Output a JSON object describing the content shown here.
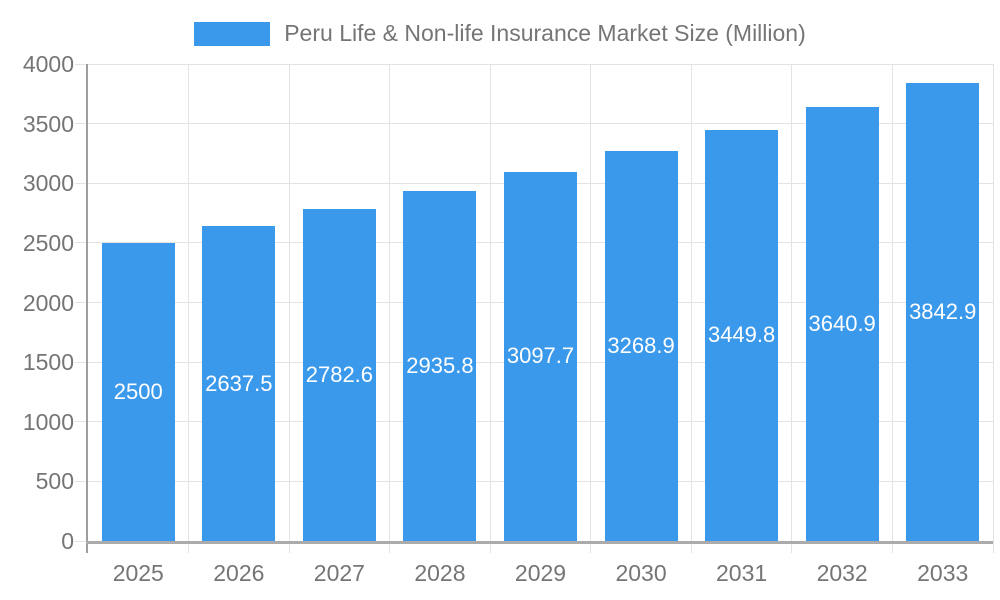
{
  "legend": {
    "label": "Peru Life & Non-life Insurance Market Size (Million)"
  },
  "chart_data": {
    "type": "bar",
    "title": "Peru Life & Non-life Insurance Market Size (Million)",
    "categories": [
      "2025",
      "2026",
      "2027",
      "2028",
      "2029",
      "2030",
      "2031",
      "2032",
      "2033"
    ],
    "values": [
      2500,
      2637.5,
      2782.6,
      2935.8,
      3097.7,
      3268.9,
      3449.8,
      3640.9,
      3842.9
    ],
    "value_labels": [
      "2500",
      "2637.5",
      "2782.6",
      "2935.8",
      "3097.7",
      "3268.9",
      "3449.8",
      "3640.9",
      "3842.9"
    ],
    "xlabel": "",
    "ylabel": "",
    "ylim": [
      0,
      4000
    ],
    "yticks": [
      0,
      500,
      1000,
      1500,
      2000,
      2500,
      3000,
      3500,
      4000
    ],
    "grid": true,
    "legend_position": "top-center",
    "bar_label_position": "inside-center",
    "colors": {
      "bar": "#3B99EC",
      "bar_label": "#FFFFFF",
      "axis_text": "#757575",
      "grid_line": "#E3E3E3",
      "axis_line_left": "#9E9E9E",
      "axis_line_bottom": "#ABABAB",
      "background": "#FFFFFF"
    }
  }
}
